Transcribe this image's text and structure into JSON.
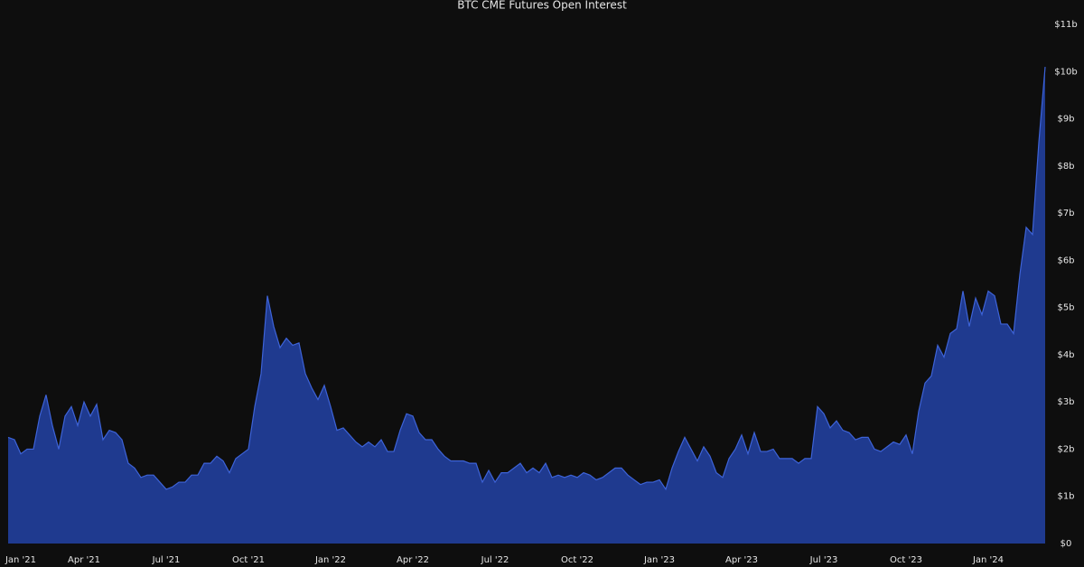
{
  "chart_data": {
    "type": "area",
    "title": "BTC CME Futures Open Interest",
    "categories": [
      null,
      null,
      "Jan '21",
      null,
      null,
      null,
      null,
      null,
      null,
      null,
      null,
      null,
      "Apr '21",
      null,
      null,
      null,
      null,
      null,
      null,
      null,
      null,
      null,
      null,
      null,
      null,
      "Jul '21",
      null,
      null,
      null,
      null,
      null,
      null,
      null,
      null,
      null,
      null,
      null,
      null,
      "Oct '21",
      null,
      null,
      null,
      null,
      null,
      null,
      null,
      null,
      null,
      null,
      null,
      null,
      "Jan '22",
      null,
      null,
      null,
      null,
      null,
      null,
      null,
      null,
      null,
      null,
      null,
      null,
      "Apr '22",
      null,
      null,
      null,
      null,
      null,
      null,
      null,
      null,
      null,
      null,
      null,
      null,
      "Jul '22",
      null,
      null,
      null,
      null,
      null,
      null,
      null,
      null,
      null,
      null,
      null,
      null,
      "Oct '22",
      null,
      null,
      null,
      null,
      null,
      null,
      null,
      null,
      null,
      null,
      null,
      null,
      "Jan '23",
      null,
      null,
      null,
      null,
      null,
      null,
      null,
      null,
      null,
      null,
      null,
      null,
      "Apr '23",
      null,
      null,
      null,
      null,
      null,
      null,
      null,
      null,
      null,
      null,
      null,
      null,
      "Jul '23",
      null,
      null,
      null,
      null,
      null,
      null,
      null,
      null,
      null,
      null,
      null,
      null,
      "Oct '23",
      null,
      null,
      null,
      null,
      null,
      null,
      null,
      null,
      null,
      null,
      null,
      null,
      "Jan '24",
      null,
      null,
      null,
      null,
      null,
      null,
      null,
      null,
      null
    ],
    "values": [
      2.25,
      2.2,
      1.9,
      2.0,
      2.0,
      2.7,
      3.15,
      2.5,
      2.0,
      2.7,
      2.9,
      2.5,
      3.0,
      2.7,
      2.95,
      2.2,
      2.4,
      2.35,
      2.2,
      1.7,
      1.6,
      1.4,
      1.45,
      1.45,
      1.3,
      1.15,
      1.2,
      1.3,
      1.3,
      1.45,
      1.45,
      1.7,
      1.7,
      1.85,
      1.75,
      1.5,
      1.8,
      1.9,
      2.0,
      2.9,
      3.6,
      5.25,
      4.6,
      4.15,
      4.35,
      4.2,
      4.25,
      3.6,
      3.3,
      3.05,
      3.35,
      2.9,
      2.4,
      2.45,
      2.3,
      2.15,
      2.05,
      2.15,
      2.05,
      2.2,
      1.95,
      1.95,
      2.4,
      2.75,
      2.7,
      2.35,
      2.2,
      2.2,
      2.0,
      1.85,
      1.75,
      1.75,
      1.75,
      1.7,
      1.7,
      1.3,
      1.55,
      1.3,
      1.5,
      1.5,
      1.6,
      1.7,
      1.5,
      1.6,
      1.5,
      1.7,
      1.4,
      1.45,
      1.4,
      1.45,
      1.4,
      1.5,
      1.45,
      1.35,
      1.4,
      1.5,
      1.6,
      1.6,
      1.45,
      1.35,
      1.25,
      1.3,
      1.3,
      1.35,
      1.15,
      1.6,
      1.95,
      2.25,
      2.0,
      1.75,
      2.05,
      1.85,
      1.5,
      1.4,
      1.8,
      2.0,
      2.3,
      1.9,
      2.35,
      1.95,
      1.95,
      2.0,
      1.8,
      1.8,
      1.8,
      1.7,
      1.8,
      1.8,
      2.9,
      2.75,
      2.45,
      2.6,
      2.4,
      2.35,
      2.2,
      2.25,
      2.25,
      2.0,
      1.95,
      2.05,
      2.15,
      2.1,
      2.3,
      1.9,
      2.8,
      3.4,
      3.55,
      4.2,
      3.95,
      4.45,
      4.55,
      5.35,
      4.6,
      5.2,
      4.85,
      5.35,
      5.25,
      4.65,
      4.65,
      4.45,
      5.7,
      6.7,
      6.55,
      8.5,
      10.1
    ],
    "color": "#1f3a8f",
    "line_color": "#3d63d8",
    "ylim": [
      0,
      11
    ],
    "yticks": [
      {
        "value": 0,
        "label": "$0"
      },
      {
        "value": 1,
        "label": "$1b"
      },
      {
        "value": 2,
        "label": "$2b"
      },
      {
        "value": 3,
        "label": "$3b"
      },
      {
        "value": 4,
        "label": "$4b"
      },
      {
        "value": 5,
        "label": "$5b"
      },
      {
        "value": 6,
        "label": "$6b"
      },
      {
        "value": 7,
        "label": "$7b"
      },
      {
        "value": 8,
        "label": "$8b"
      },
      {
        "value": 9,
        "label": "$9b"
      },
      {
        "value": 10,
        "label": "$10b"
      },
      {
        "value": 11,
        "label": "$11b"
      }
    ]
  }
}
